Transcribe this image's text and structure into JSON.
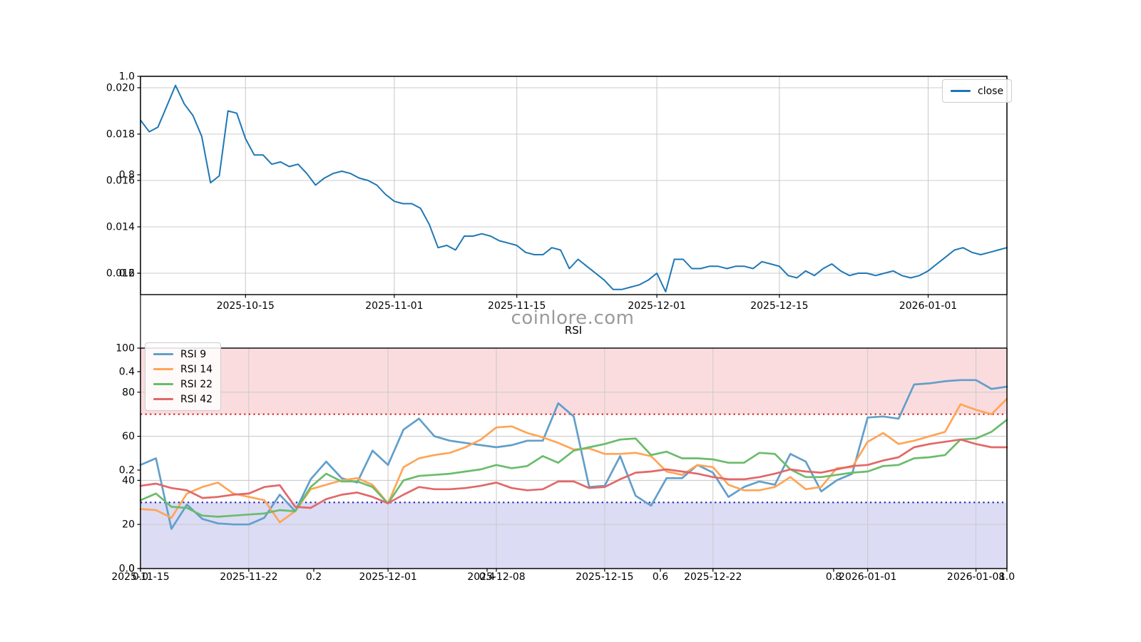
{
  "watermark": "coinlore.com",
  "hidden_axes": {
    "xticks": [
      "0.0",
      "0.2",
      "0.4",
      "0.6",
      "0.8",
      "1.0"
    ],
    "yticks": [
      "1.0",
      "0.8",
      "0.6",
      "0.4",
      "0.2",
      "0.0"
    ]
  },
  "chart_data": [
    {
      "type": "line",
      "title": "",
      "legend_position": "upper right",
      "grid": true,
      "x_start_date": "2025-10-03",
      "x_end_date": "2026-01-10",
      "x_frequency": "daily",
      "xtick_labels": [
        "2025-10-15",
        "2025-11-01",
        "2025-11-15",
        "2025-12-01",
        "2025-12-15",
        "2026-01-01"
      ],
      "xtick_day_index": [
        12,
        29,
        43,
        59,
        73,
        90
      ],
      "ytick_labels": [
        "0.020",
        "0.018",
        "0.016",
        "0.014",
        "0.012"
      ],
      "ytick_values": [
        0.02,
        0.018,
        0.016,
        0.014,
        0.012
      ],
      "ylim": [
        0.011077,
        0.020492
      ],
      "series": [
        {
          "name": "close",
          "color": "#1f77b4",
          "values": [
            0.0186,
            0.0181,
            0.0183,
            0.0192,
            0.0201,
            0.0193,
            0.0188,
            0.0179,
            0.0159,
            0.0162,
            0.019,
            0.0189,
            0.0178,
            0.0171,
            0.0171,
            0.0167,
            0.0168,
            0.0166,
            0.0167,
            0.0163,
            0.0158,
            0.0161,
            0.0163,
            0.0164,
            0.0163,
            0.0161,
            0.016,
            0.0158,
            0.0154,
            0.0151,
            0.015,
            0.015,
            0.0148,
            0.0141,
            0.0131,
            0.0132,
            0.013,
            0.0136,
            0.0136,
            0.0137,
            0.0136,
            0.0134,
            0.0133,
            0.0132,
            0.0129,
            0.0128,
            0.0128,
            0.0131,
            0.013,
            0.0122,
            0.0126,
            0.0123,
            0.012,
            0.0117,
            0.0113,
            0.0113,
            0.0114,
            0.0115,
            0.0117,
            0.012,
            0.0112,
            0.0126,
            0.0126,
            0.0122,
            0.0122,
            0.0123,
            0.0123,
            0.0122,
            0.0123,
            0.0123,
            0.0122,
            0.0125,
            0.0124,
            0.0123,
            0.0119,
            0.0118,
            0.0121,
            0.0119,
            0.0122,
            0.0124,
            0.0121,
            0.0119,
            0.012,
            0.012,
            0.0119,
            0.012,
            0.0121,
            0.0119,
            0.0118,
            0.0119,
            0.0121,
            0.0124,
            0.0127,
            0.013,
            0.0131,
            0.0129,
            0.0128,
            0.0129,
            0.013,
            0.0131
          ]
        }
      ]
    },
    {
      "type": "line",
      "title": "RSI",
      "legend_position": "upper left",
      "grid": true,
      "x_start_date": "2025-11-15",
      "x_end_date": "2026-01-10",
      "x_frequency": "daily",
      "xtick_labels": [
        "2025-11-15",
        "2025-11-22",
        "2025-12-01",
        "2025-12-08",
        "2025-12-15",
        "2025-12-22",
        "2026-01-01",
        "2026-01-08"
      ],
      "xtick_day_index": [
        0,
        7,
        16,
        23,
        30,
        37,
        47,
        54
      ],
      "ytick_labels": [
        "100",
        "80",
        "60",
        "40",
        "20",
        "0"
      ],
      "ytick_values": [
        100,
        80,
        60,
        40,
        20,
        0
      ],
      "ylim": [
        0,
        100
      ],
      "overbought_level": 70,
      "oversold_level": 30,
      "overbought_band_color": "#fadcdf",
      "oversold_band_color": "#dcdcf5",
      "overbought_line_color": "#d42222",
      "oversold_line_color": "#2222bb",
      "series": [
        {
          "name": "RSI 9",
          "color": "#629fca",
          "values": [
            47,
            50,
            18,
            29,
            22.5,
            20.5,
            20,
            20,
            23,
            33.5,
            26,
            40.5,
            48.5,
            41,
            39,
            53.5,
            47,
            63,
            68,
            60,
            58,
            57,
            56,
            55,
            56,
            58,
            58,
            75,
            69,
            37,
            37.5,
            51,
            33,
            28.5,
            41,
            41,
            47,
            43.5,
            32.5,
            37,
            39.5,
            38,
            52,
            48.5,
            35,
            40,
            43,
            68.5,
            69,
            68,
            83.5,
            84,
            85,
            85.5,
            85.5,
            81.5,
            82.5
          ]
        },
        {
          "name": "RSI 14",
          "color": "#ffa556",
          "values": [
            27,
            26.5,
            23,
            34,
            37,
            39,
            34,
            32.5,
            31,
            21,
            26,
            36,
            38,
            40,
            41,
            38,
            29.5,
            46,
            50,
            51.5,
            52.5,
            55,
            58.5,
            64,
            64.5,
            61.5,
            59.5,
            57,
            54,
            54.5,
            52,
            52,
            52.5,
            51,
            44,
            42.5,
            47,
            46,
            38,
            35.5,
            35.5,
            37,
            41.5,
            36,
            37,
            45.5,
            46,
            57.5,
            61.5,
            56.5,
            58,
            60,
            62,
            74.5,
            72,
            70,
            77
          ]
        },
        {
          "name": "RSI 22",
          "color": "#6bbc6b",
          "values": [
            31,
            34,
            28,
            27.5,
            24,
            23.5,
            24,
            24.5,
            25,
            26.5,
            26,
            37,
            43,
            39.5,
            39.5,
            37,
            29.5,
            40,
            42,
            42.5,
            43,
            44,
            45,
            47,
            45.5,
            46.5,
            51,
            48,
            53.5,
            55,
            56.5,
            58.5,
            59,
            51.5,
            53,
            50,
            50,
            49.5,
            48,
            48,
            52.5,
            52,
            45,
            41.5,
            41.5,
            42.5,
            43.5,
            44,
            46.5,
            47,
            50,
            50.5,
            51.5,
            58.5,
            59,
            62,
            67.5
          ]
        },
        {
          "name": "RSI 42",
          "color": "#e26868",
          "values": [
            37.5,
            38.5,
            36.5,
            35.5,
            32,
            32.5,
            33.5,
            34,
            37,
            37.8,
            28,
            27.5,
            31.5,
            33.5,
            34.5,
            32.5,
            29.6,
            33.5,
            37,
            36,
            36,
            36.5,
            37.5,
            39,
            36.5,
            35.5,
            36,
            39.5,
            39.5,
            36.5,
            37,
            40.5,
            43.5,
            44,
            45,
            44,
            43,
            41.5,
            40.5,
            40.5,
            41.5,
            43,
            45,
            44,
            43.5,
            45,
            46.5,
            47,
            49,
            50.5,
            55,
            56.5,
            57.5,
            58.5,
            56.5,
            55,
            55
          ]
        }
      ]
    }
  ]
}
